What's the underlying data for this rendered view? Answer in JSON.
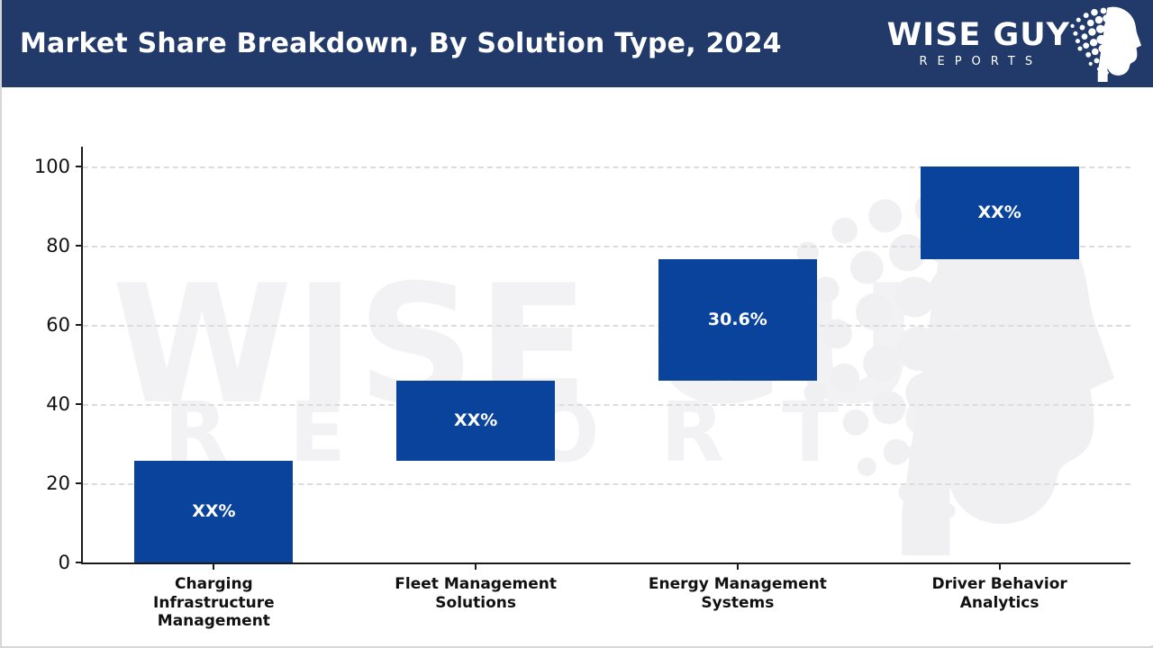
{
  "header": {
    "title": "Market Share Breakdown, By Solution Type, 2024",
    "background_color": "#213a69",
    "logo": {
      "line1": "WISE GUY",
      "line2": "REPORTS",
      "head_icon": "dotted-face-profile"
    }
  },
  "watermark": {
    "line1": "WISE GUY",
    "line2": "REPORTS",
    "color": "#f2f2f4"
  },
  "chart_data": {
    "type": "bar",
    "variant": "floating-waterfall",
    "title": "Market Share Breakdown, By Solution Type, 2024",
    "categories": [
      "Charging Infrastructure Management",
      "Fleet Management Solutions",
      "Energy Management Systems",
      "Driver Behavior Analytics"
    ],
    "categories_lines": [
      [
        "Charging",
        "Infrastructure",
        "Management"
      ],
      [
        "Fleet Management",
        "Solutions"
      ],
      [
        "Energy Management",
        "Systems"
      ],
      [
        "Driver Behavior",
        "Analytics"
      ]
    ],
    "series": [
      {
        "name": "Market Share (%)",
        "segments": [
          {
            "start": 0,
            "end": 25.7,
            "height": 25.7,
            "label": "XX%"
          },
          {
            "start": 25.7,
            "end": 46.0,
            "height": 20.3,
            "label": "XX%"
          },
          {
            "start": 46.0,
            "end": 76.6,
            "height": 30.6,
            "label": "30.6%"
          },
          {
            "start": 76.6,
            "end": 100,
            "height": 23.4,
            "label": "XX%"
          }
        ]
      }
    ],
    "xlabel": "",
    "ylabel": "",
    "ylim": [
      0,
      105
    ],
    "yticks": [
      0,
      20,
      40,
      60,
      80,
      100
    ],
    "grid": "horizontal-dashed",
    "legend": "none",
    "bar_color": "#09439b",
    "bar_label_color": "#ffffff"
  }
}
